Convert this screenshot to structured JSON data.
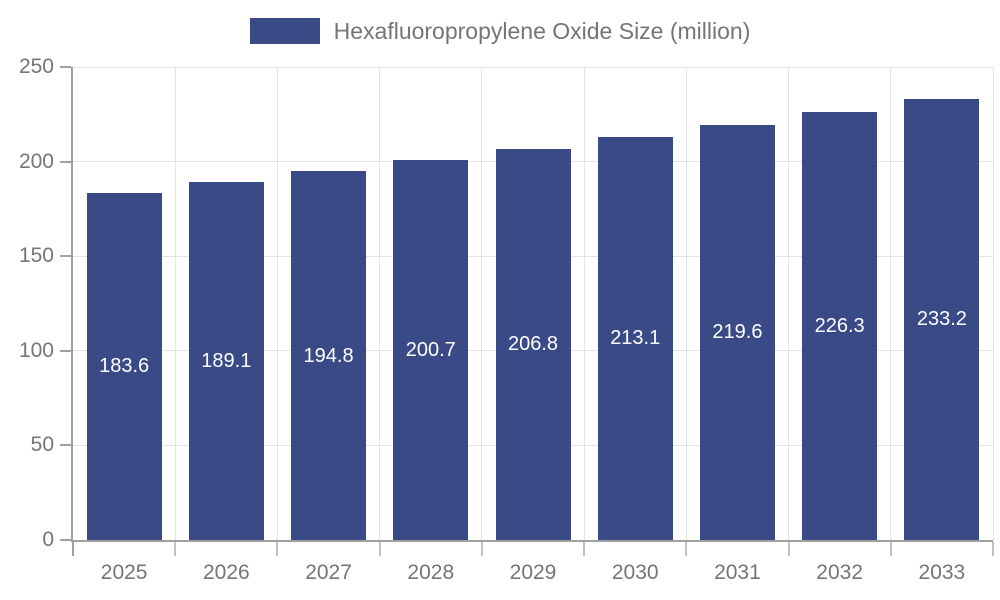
{
  "chart_data": {
    "type": "bar",
    "title": "Hexafluoropropylene Oxide Size (million)",
    "legend": "Hexafluoropropylene Oxide Size (million)",
    "legend_position": "top",
    "categories": [
      "2025",
      "2026",
      "2027",
      "2028",
      "2029",
      "2030",
      "2031",
      "2032",
      "2033"
    ],
    "values": [
      183.6,
      189.1,
      194.8,
      200.7,
      206.8,
      213.1,
      219.6,
      226.3,
      233.2
    ],
    "value_labels": [
      "183.6",
      "189.1",
      "194.8",
      "200.7",
      "206.8",
      "213.1",
      "219.6",
      "226.3",
      "233.2"
    ],
    "xlabel": "",
    "ylabel": "",
    "ylim": [
      0,
      250
    ],
    "yticks": [
      0,
      50,
      100,
      150,
      200,
      250
    ],
    "grid": true,
    "colors": {
      "bar": "#3a4a86",
      "axis": "#a0a0a0",
      "grid": "#e3e3e3",
      "tick_label": "#757575",
      "value_label": "#ffffff",
      "background": "#ffffff"
    }
  }
}
